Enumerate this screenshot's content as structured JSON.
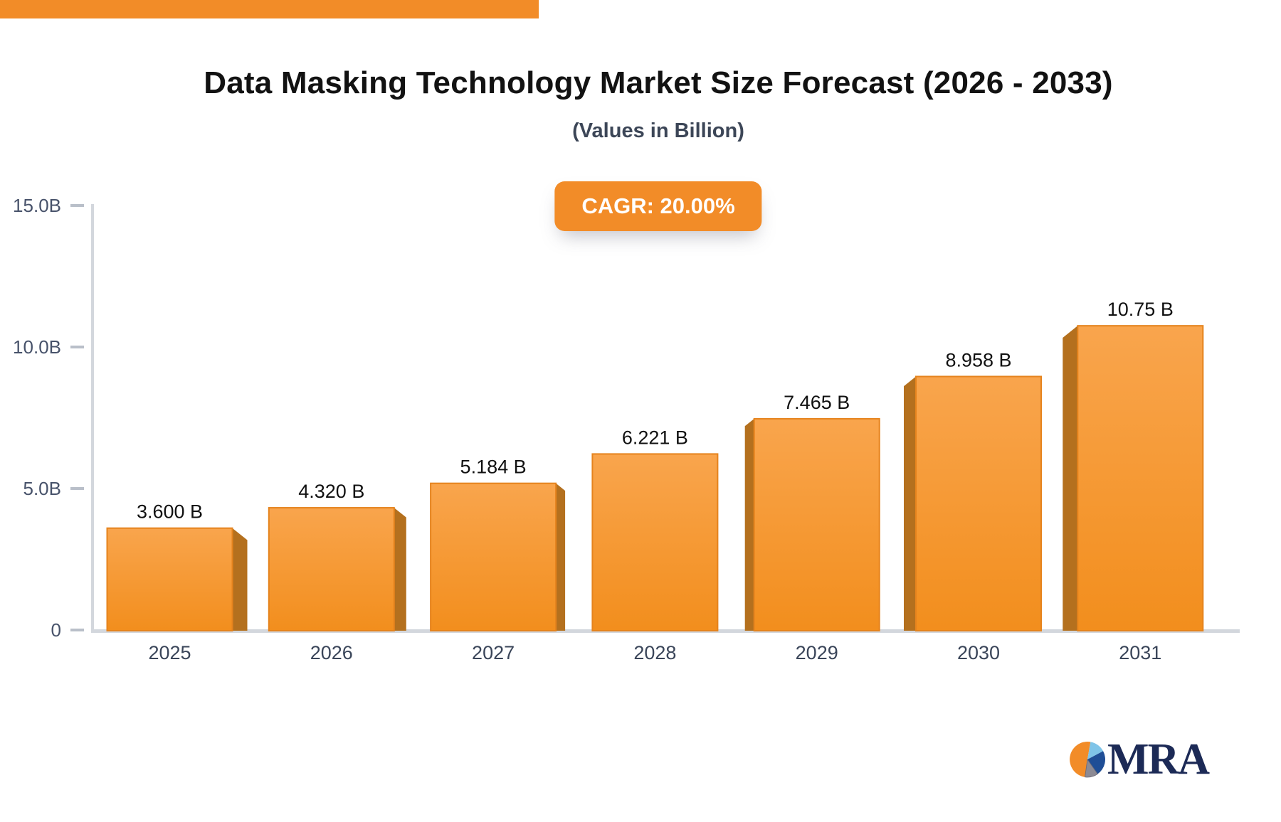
{
  "chart_data": {
    "type": "bar",
    "title": "Data Masking Technology Market Size Forecast (2026 - 2033)",
    "subtitle": "(Values in Billion)",
    "annotation": "CAGR: 20.00%",
    "categories": [
      "2025",
      "2026",
      "2027",
      "2028",
      "2029",
      "2030",
      "2031"
    ],
    "values": [
      3.6,
      4.32,
      5.184,
      6.221,
      7.465,
      8.958,
      10.75
    ],
    "value_labels": [
      "3.600 B",
      "4.320 B",
      "5.184 B",
      "6.221 B",
      "7.465 B",
      "8.958 B",
      "10.75 B"
    ],
    "ylim": [
      0,
      15
    ],
    "yticks": [
      {
        "value": 0,
        "label": "0"
      },
      {
        "value": 5,
        "label": "5.0B"
      },
      {
        "value": 10,
        "label": "10.0B"
      },
      {
        "value": 15,
        "label": "15.0B"
      }
    ],
    "grid": false,
    "legend": false,
    "bar_face_color_top": "#F9A54D",
    "bar_face_color_bottom": "#F28E1D",
    "bar_border_color": "#E5831D",
    "bar_side_color": "#B4701E",
    "axis_line_color": "#D3D7DD",
    "tick_mark_color": "#B9BFC9",
    "axis_label_color": "#47526A",
    "category_label_color": "#3A4559",
    "value_label_color": "#111111"
  },
  "badge": {
    "background_color": "#F28C28",
    "text_color": "#FFFFFF"
  },
  "branding": {
    "logo_text": "MRA",
    "logo_navy": "#1C2A56",
    "logo_orange": "#F28C28",
    "logo_light_blue": "#7FC4E8",
    "logo_dark_blue": "#1F4E96",
    "logo_gray": "#8C8A94"
  }
}
